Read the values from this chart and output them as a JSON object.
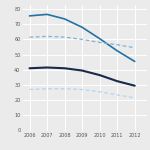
{
  "years": [
    2006,
    2007,
    2008,
    2009,
    2010,
    2011,
    2012
  ],
  "line1": [
    75.5,
    76.5,
    73.5,
    68.0,
    60.5,
    52.5,
    45.5
  ],
  "line2": [
    61.5,
    62.0,
    61.5,
    60.0,
    58.0,
    56.5,
    54.5
  ],
  "line3": [
    41.0,
    41.5,
    41.0,
    39.5,
    36.5,
    32.5,
    29.5
  ],
  "line4": [
    27.0,
    27.5,
    27.5,
    27.0,
    25.5,
    23.5,
    21.5
  ],
  "line1_color": "#2471a3",
  "line2_color": "#7fb3d3",
  "line3_color": "#1a2a4a",
  "line4_color": "#aed6f1",
  "ylim": [
    0,
    83
  ],
  "yticks": [
    0,
    10,
    20,
    30,
    40,
    50,
    60,
    70,
    80
  ],
  "xlim": [
    2005.6,
    2012.7
  ],
  "xtick_labels": [
    "2006",
    "2007",
    "2008",
    "2009",
    "2010",
    "2011",
    "2012"
  ],
  "background_color": "#ebebeb",
  "grid_color": "#ffffff"
}
